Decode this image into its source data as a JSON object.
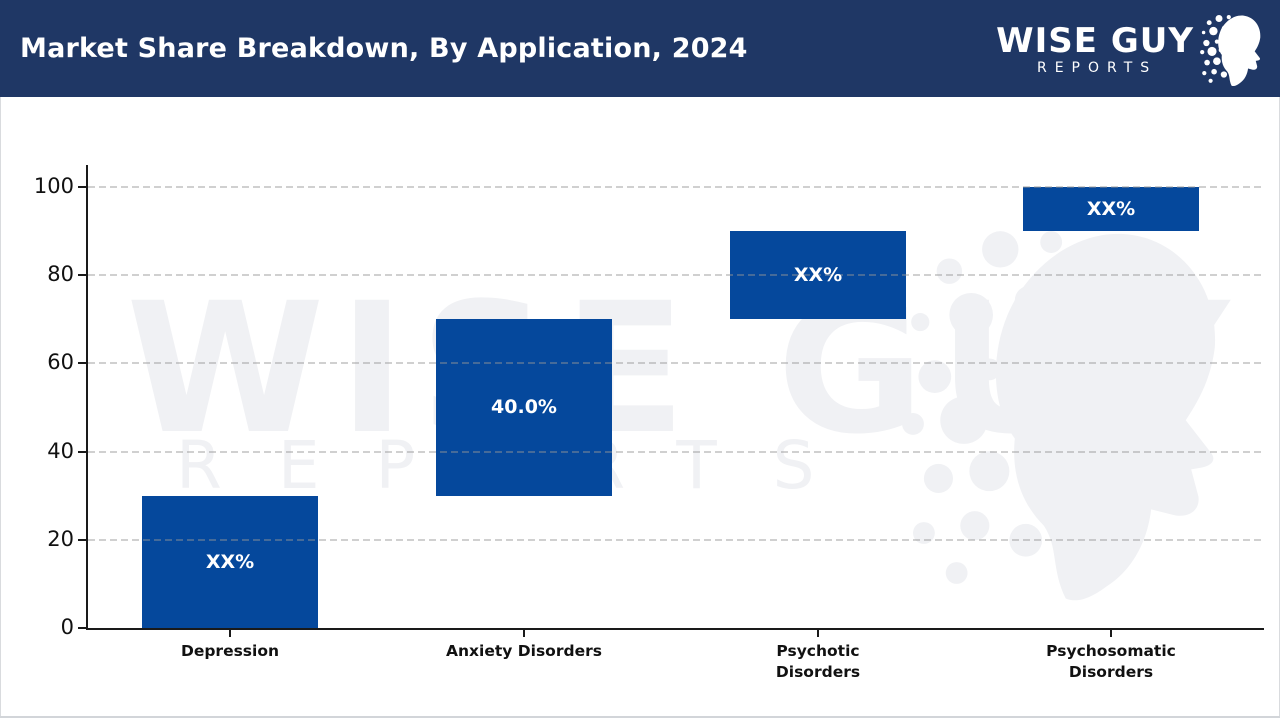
{
  "page": {
    "background": "#ffffff",
    "frame_color": "#d2d5d9"
  },
  "header": {
    "background": "#1f3765",
    "title": "Market Share Breakdown, By Application, 2024",
    "logo": {
      "line1": "WISE GUY",
      "line2": "REPORTS"
    }
  },
  "watermark": {
    "line1": "WISE GUY",
    "line2": "REPORTS"
  },
  "chart_data": {
    "type": "bar",
    "subtype": "waterfall",
    "title": "Market Share Breakdown, By Application, 2024",
    "categories": [
      "Depression",
      "Anxiety Disorders",
      "Psychotic\nDisorders",
      "Psychosomatic\nDisorders"
    ],
    "series": [
      {
        "name": "Market Share (%)",
        "starts": [
          0,
          30,
          70,
          90
        ],
        "ends": [
          30,
          70,
          90,
          100
        ],
        "values": [
          30,
          40,
          20,
          10
        ]
      }
    ],
    "bar_labels": [
      "XX%",
      "40.0%",
      "XX%",
      "XX%"
    ],
    "xlabel": "",
    "ylabel": "",
    "ylim": [
      0,
      100
    ],
    "yticks": [
      0,
      20,
      40,
      60,
      80,
      100
    ],
    "grid": "horizontal-dashed",
    "legend": "none",
    "bar_color": "#05489c",
    "bar_label_color": "#ffffff",
    "axis_color": "#1a1a1a",
    "grid_color": "#d8d8d8"
  }
}
